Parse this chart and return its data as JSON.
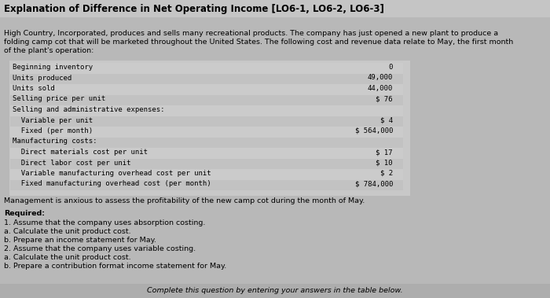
{
  "title": "Explanation of Difference in Net Operating Income [LO6-1, LO6-2, LO6-3]",
  "bg_color": "#b8b8b8",
  "intro_lines": [
    "High Country, Incorporated, produces and sells many recreational products. The company has just opened a new plant to produce a",
    "folding camp cot that will be marketed throughout the United States. The following cost and revenue data relate to May, the first month",
    "of the plant's operation:"
  ],
  "data_rows": [
    [
      "Beginning inventory",
      "0"
    ],
    [
      "Units produced",
      "49,000"
    ],
    [
      "Units sold",
      "44,000"
    ],
    [
      "Selling price per unit",
      "$ 76"
    ],
    [
      "Selling and administrative expenses:",
      ""
    ],
    [
      "  Variable per unit",
      "$ 4"
    ],
    [
      "  Fixed (per month)",
      "$ 564,000"
    ],
    [
      "Manufacturing costs:",
      ""
    ],
    [
      "  Direct materials cost per unit",
      "$ 17"
    ],
    [
      "  Direct labor cost per unit",
      "$ 10"
    ],
    [
      "  Variable manufacturing overhead cost per unit",
      "$ 2"
    ],
    [
      "  Fixed manufacturing overhead cost (per month)",
      "$ 784,000"
    ]
  ],
  "management_text": "Management is anxious to assess the profitability of the new camp cot during the month of May.",
  "required_title": "Required:",
  "required_items": [
    "1. Assume that the company uses absorption costing.",
    "a. Calculate the unit product cost.",
    "b. Prepare an income statement for May.",
    "2. Assume that the company uses variable costing.",
    "a. Calculate the unit product cost.",
    "b. Prepare a contribution format income statement for May."
  ],
  "bottom_text": "Complete this question by entering your answers in the table below.",
  "title_fontsize": 8.5,
  "body_fontsize": 6.8,
  "data_fontsize": 6.5,
  "req_fontsize": 6.8
}
